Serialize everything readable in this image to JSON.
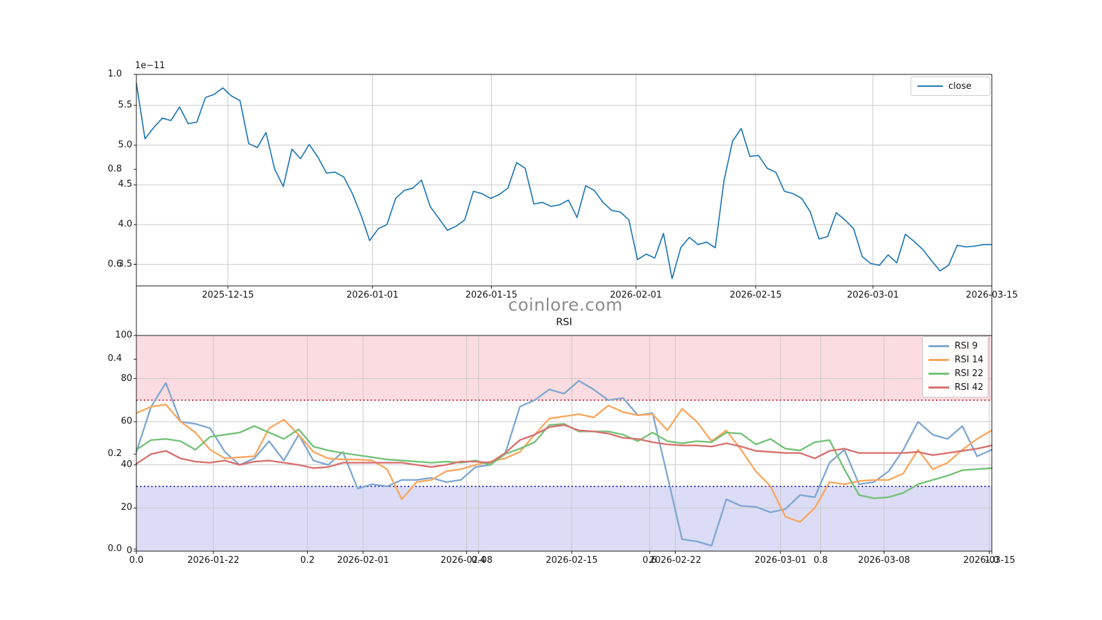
{
  "figure": {
    "watermark": "coinlore.com",
    "background": "#ffffff"
  },
  "colors": {
    "spine": "#1a1a1a",
    "grid": "#c9c9c9",
    "tick_text": "#151515",
    "watermark": "#8c8c8c",
    "close_line": "#1f77b4",
    "rsi9": "#7fa8d1",
    "rsi14": "#f9a75e",
    "rsi22": "#74c177",
    "rsi42": "#d8716f",
    "overbought_band": "#fbdce0",
    "oversold_band": "#dcdcf6",
    "overbought_line": "#d20f2a",
    "oversold_line": "#1414cc"
  },
  "chart_data": [
    {
      "type": "line",
      "name": "price",
      "title": "",
      "offset_label": "1e−11",
      "ylim": [
        3.23,
        5.89
      ],
      "grid": true,
      "legend_position": "upper right",
      "y_ticks": [
        {
          "label": "5.5",
          "v": 5.5
        },
        {
          "label": "5.0",
          "v": 5.0
        },
        {
          "label": "4.5",
          "v": 4.5
        },
        {
          "label": "4.0",
          "v": 4.0
        },
        {
          "label": "3.5",
          "v": 3.5
        }
      ],
      "x_ticks": [
        {
          "label": "2025-12-15",
          "f": 0.107
        },
        {
          "label": "2026-01-01",
          "f": 0.276
        },
        {
          "label": "2026-01-15",
          "f": 0.415
        },
        {
          "label": "2026-02-01",
          "f": 0.584
        },
        {
          "label": "2026-02-15",
          "f": 0.724
        },
        {
          "label": "2026-03-01",
          "f": 0.861
        },
        {
          "label": "2026-03-15",
          "f": 1.0
        }
      ],
      "series": [
        {
          "name": "close",
          "color": "#1f77b4",
          "values": [
            5.78,
            5.08,
            5.22,
            5.34,
            5.31,
            5.48,
            5.27,
            5.29,
            5.6,
            5.64,
            5.72,
            5.62,
            5.56,
            5.02,
            4.97,
            5.16,
            4.7,
            4.48,
            4.95,
            4.83,
            5.01,
            4.85,
            4.65,
            4.66,
            4.6,
            4.39,
            4.12,
            3.8,
            3.95,
            4.0,
            4.33,
            4.43,
            4.46,
            4.56,
            4.23,
            4.08,
            3.93,
            3.98,
            4.06,
            4.42,
            4.39,
            4.33,
            4.38,
            4.46,
            4.78,
            4.71,
            4.26,
            4.28,
            4.23,
            4.25,
            4.31,
            4.09,
            4.49,
            4.43,
            4.28,
            4.18,
            4.16,
            4.06,
            3.56,
            3.63,
            3.58,
            3.89,
            3.32,
            3.71,
            3.84,
            3.75,
            3.78,
            3.71,
            4.55,
            5.05,
            5.21,
            4.86,
            4.87,
            4.71,
            4.66,
            4.42,
            4.39,
            4.33,
            4.16,
            3.82,
            3.85,
            4.15,
            4.06,
            3.95,
            3.6,
            3.51,
            3.49,
            3.62,
            3.52,
            3.88,
            3.79,
            3.69,
            3.55,
            3.42,
            3.49,
            3.74,
            3.72,
            3.73,
            3.75,
            3.75
          ]
        }
      ]
    },
    {
      "type": "line",
      "name": "rsi",
      "title": "RSI",
      "ylim": [
        0,
        100
      ],
      "grid": true,
      "legend_position": "upper right",
      "y_ticks": [
        {
          "label": "100",
          "v": 100
        },
        {
          "label": "80",
          "v": 80
        },
        {
          "label": "60",
          "v": 60
        },
        {
          "label": "40",
          "v": 40
        },
        {
          "label": "20",
          "v": 20
        },
        {
          "label": "0",
          "v": 0
        }
      ],
      "x_ticks": [
        {
          "label": "2026-01-22",
          "f": 0.09
        },
        {
          "label": "2026-02-01",
          "f": 0.265
        },
        {
          "label": "2026-02-08",
          "f": 0.386
        },
        {
          "label": "2026-02-15",
          "f": 0.509
        },
        {
          "label": "2026-02-22",
          "f": 0.63
        },
        {
          "label": "2026-03-01",
          "f": 0.753
        },
        {
          "label": "2026-03-08",
          "f": 0.874
        },
        {
          "label": "2026-03-15",
          "f": 0.997
        }
      ],
      "bands": [
        {
          "name": "overbought-band",
          "from": 70,
          "to": 100,
          "color": "#fbdce0"
        },
        {
          "name": "oversold-band",
          "from": 0,
          "to": 30,
          "color": "#dcdcf6"
        }
      ],
      "threshold_lines": [
        {
          "name": "overbought-threshold",
          "v": 70,
          "color": "#d20f2a"
        },
        {
          "name": "oversold-threshold",
          "v": 30,
          "color": "#1414cc"
        }
      ],
      "series": [
        {
          "name": "RSI 9",
          "color": "#7fa8d1",
          "values": [
            46,
            67,
            78,
            60,
            59,
            57,
            46,
            40,
            43,
            51,
            42,
            54,
            42,
            40,
            46,
            29,
            31,
            30,
            33,
            33,
            34,
            32,
            33,
            39,
            40,
            45,
            67,
            70,
            75,
            73,
            79,
            75,
            70,
            71,
            63,
            64,
            35,
            5.5,
            4.5,
            2.5,
            24,
            21,
            20.5,
            18,
            19.5,
            26,
            25,
            41,
            47,
            31,
            32,
            37,
            47,
            60,
            54,
            52,
            58,
            44,
            47
          ]
        },
        {
          "name": "RSI 14",
          "color": "#f9a75e",
          "values": [
            64,
            67,
            68,
            60,
            55,
            47,
            43,
            43.5,
            44,
            57,
            61,
            54,
            46,
            43,
            42.5,
            42.5,
            42,
            38,
            24,
            32,
            33,
            37,
            38,
            40,
            41.5,
            43,
            46,
            54,
            61.5,
            62.5,
            63.5,
            62,
            67.5,
            64.5,
            63,
            63.5,
            56,
            66,
            60,
            51,
            56,
            47,
            37,
            30,
            16,
            13.5,
            20,
            32,
            31,
            32.5,
            33,
            33,
            36,
            47,
            38,
            41,
            47,
            52,
            56
          ]
        },
        {
          "name": "RSI 22",
          "color": "#74c177",
          "values": [
            47,
            51.5,
            52,
            51,
            47,
            53,
            54,
            55,
            58,
            55,
            52,
            56.5,
            48.5,
            46.7,
            45.5,
            44.5,
            43.5,
            42.5,
            42,
            41.5,
            41,
            41.5,
            41,
            42,
            40,
            45,
            47.5,
            50.5,
            58.5,
            59,
            55.5,
            55.5,
            55.5,
            54,
            51,
            55,
            51,
            50,
            51,
            50.5,
            55,
            54.5,
            49.5,
            52,
            47.5,
            46.7,
            50.5,
            51.5,
            38,
            26,
            24.5,
            25,
            27,
            31,
            33,
            35,
            37.5,
            38,
            38.5
          ]
        },
        {
          "name": "RSI 42",
          "color": "#d8716f",
          "values": [
            40.5,
            45,
            46.5,
            43,
            41.5,
            41,
            42,
            40,
            41.5,
            42,
            41,
            40,
            38.5,
            39,
            41,
            41,
            41,
            41,
            41,
            40,
            39,
            40,
            41.5,
            41.5,
            41,
            45.5,
            51.5,
            54,
            57.5,
            58.5,
            56,
            55.5,
            54.5,
            52.5,
            52,
            50.5,
            49.5,
            49,
            49,
            48.5,
            50,
            48.5,
            46.5,
            46,
            45.5,
            45.5,
            43,
            46.5,
            47.5,
            45.5,
            45.5,
            45.5,
            45.5,
            46,
            44.5,
            45.5,
            46.5,
            47.5,
            49
          ]
        }
      ]
    },
    {
      "type": "line",
      "name": "overlay_default_axis",
      "title": "",
      "xlim": [
        0,
        1
      ],
      "ylim": [
        0,
        1
      ],
      "x_ticks": [
        {
          "label": "0.0",
          "v": 0.0
        },
        {
          "label": "0.2",
          "v": 0.2
        },
        {
          "label": "0.4",
          "v": 0.4
        },
        {
          "label": "0.6",
          "v": 0.6
        },
        {
          "label": "0.8",
          "v": 0.8
        },
        {
          "label": "1.0",
          "v": 1.0
        }
      ],
      "y_ticks": [
        {
          "label": "1.0",
          "v": 1.0
        },
        {
          "label": "0.8",
          "v": 0.8
        },
        {
          "label": "0.6",
          "v": 0.6
        },
        {
          "label": "0.4",
          "v": 0.4
        },
        {
          "label": "0.2",
          "v": 0.2
        },
        {
          "label": "0.0",
          "v": 0.0
        }
      ],
      "series": []
    }
  ]
}
